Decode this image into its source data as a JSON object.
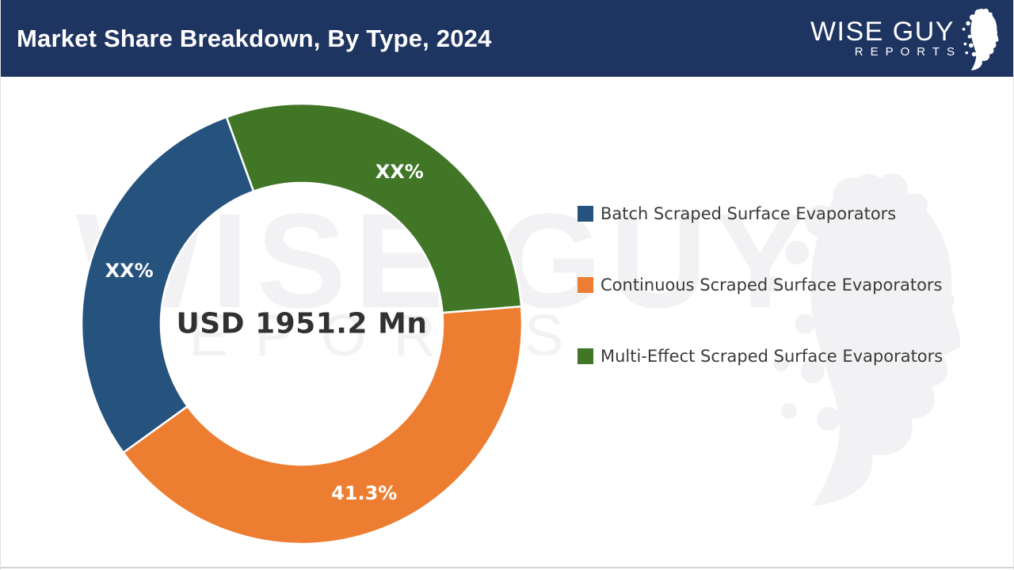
{
  "header": {
    "title": "Market Share Breakdown, By Type, 2024",
    "logo": {
      "line1": "WISE GUY",
      "line2": "REPORTS"
    }
  },
  "chart_data": {
    "type": "pie",
    "subtype": "donut",
    "title": "Market Share Breakdown, By Type, 2024",
    "center_label": "USD 1951.2 Mn",
    "units": "percent of market",
    "start_angle_deg": 110,
    "direction": "counterclockwise",
    "inner_radius_ratio": 0.64,
    "legend_position": "right",
    "series": [
      {
        "label": "Batch Scraped Surface Evaporators",
        "value": 29.4,
        "display_label": "XX%",
        "color": "#25537D"
      },
      {
        "label": "Continuous Scraped Surface Evaporators",
        "value": 41.3,
        "display_label": "41.3%",
        "color": "#ED7D31"
      },
      {
        "label": "Multi-Effect Scraped Surface Evaporators",
        "value": 29.3,
        "display_label": "XX%",
        "color": "#417627"
      }
    ]
  },
  "watermark": {
    "line1": "WISE GUY",
    "line2": "REPORTS"
  },
  "colors": {
    "header_bg": "#1E3461",
    "header_text": "#FFFFFF",
    "center_text": "#313131",
    "pct_label_text": "#FFFFFF",
    "legend_text": "#3A3A3A",
    "slice_border": "#FFFFFF",
    "divider": "#D2D2D2",
    "watermark": "#F2F2F4"
  }
}
